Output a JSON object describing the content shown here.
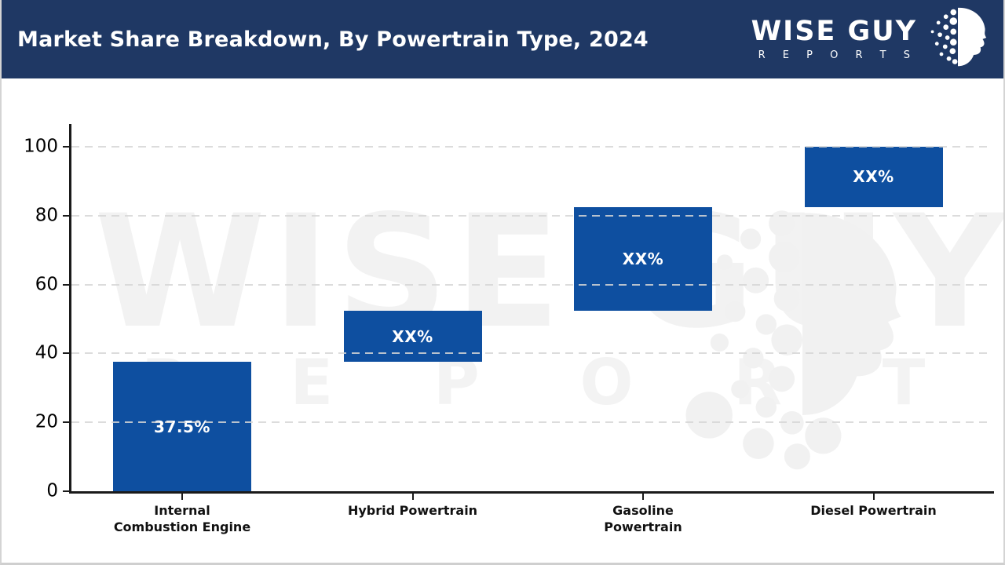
{
  "header": {
    "title": "Market Share Breakdown, By Powertrain Type, 2024",
    "bg_color": "#1f3864",
    "logo": {
      "line1": "WISE GUY",
      "line2": "R E P O R T S"
    }
  },
  "watermark": {
    "line1": "WISE GUY",
    "line2": "R E P O R T S"
  },
  "chart_data": {
    "type": "bar",
    "subtype": "waterfall",
    "title": "Market Share Breakdown, By Powertrain Type, 2024",
    "categories": [
      [
        "Internal",
        "Combustion Engine"
      ],
      [
        "Hybrid Powertrain"
      ],
      [
        "Gasoline",
        "Powertrain"
      ],
      [
        "Diesel Powertrain"
      ]
    ],
    "segments": [
      {
        "category": "Internal Combustion Engine",
        "start": 0,
        "end": 37.5,
        "label": "37.5%"
      },
      {
        "category": "Hybrid Powertrain",
        "start": 37.5,
        "end": 52.3,
        "label": "XX%"
      },
      {
        "category": "Gasoline Powertrain",
        "start": 52.3,
        "end": 82.5,
        "label": "XX%"
      },
      {
        "category": "Diesel Powertrain",
        "start": 82.5,
        "end": 100,
        "label": "XX%"
      }
    ],
    "ylim": [
      0,
      100
    ],
    "yticks": [
      0,
      20,
      40,
      60,
      80,
      100
    ],
    "xlabel": "",
    "ylabel": "",
    "grid": "horizontal-dashed",
    "legend": "none",
    "bar_color": "#0e4fa0",
    "bar_label_color": "#ffffff"
  }
}
